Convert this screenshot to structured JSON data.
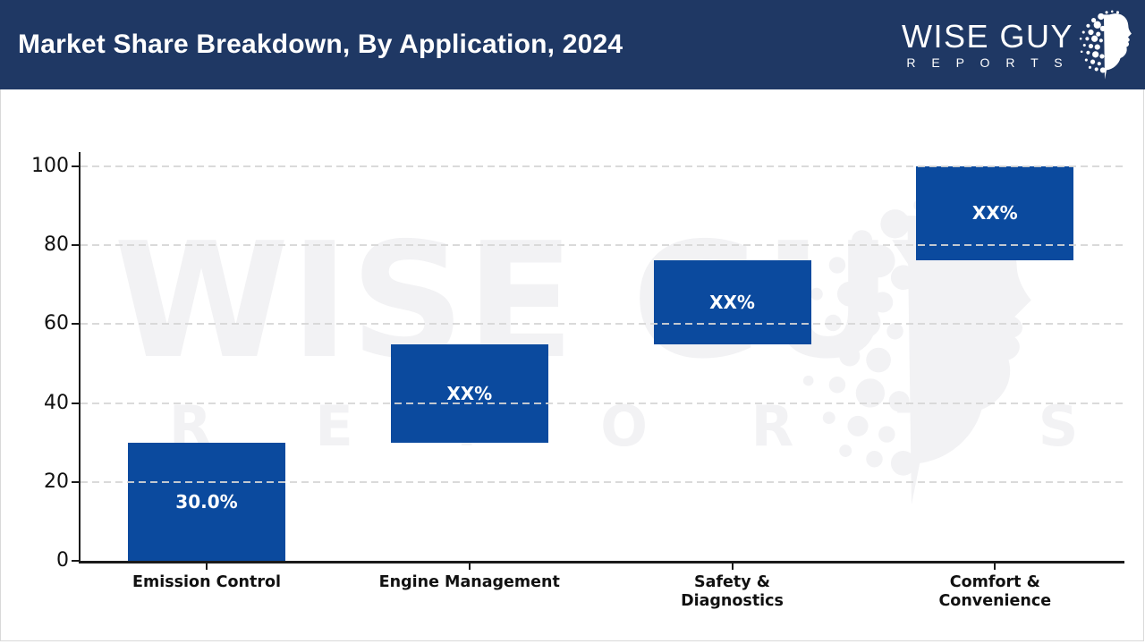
{
  "header": {
    "title": "Market Share Breakdown, By Application, 2024",
    "logo": {
      "name_line": "WISE GUY",
      "reports_line": "R E P O R T S"
    }
  },
  "watermark": {
    "name_line": "WISE GUY",
    "reports_line": "R E P O R T S"
  },
  "chart_data": {
    "type": "bar",
    "subtype": "waterfall-floating-bars",
    "title": "Market Share Breakdown, By Application, 2024",
    "unit": "percent",
    "categories_display": [
      "Emission Control",
      "Engine Management",
      "Safety &\nDiagnostics",
      "Comfort &\nConvenience"
    ],
    "bars": [
      {
        "category": "Emission Control",
        "label": "30.0%",
        "start": 0,
        "end": 30
      },
      {
        "category": "Engine Management",
        "label": "XX%",
        "start": 30,
        "end": 54.8
      },
      {
        "category": "Safety & Diagnostics",
        "label": "XX%",
        "start": 54.8,
        "end": 76.3
      },
      {
        "category": "Comfort & Convenience",
        "label": "XX%",
        "start": 76.3,
        "end": 100
      }
    ],
    "yticks": [
      "0",
      "20",
      "40",
      "60",
      "80",
      "100"
    ],
    "ylim": [
      0,
      100
    ],
    "grid": "horizontal-dashed",
    "legend": "none",
    "colors": {
      "bar": "#0b4a9e",
      "header_bg": "#1f3864",
      "grid": "#d6d6d6",
      "axis": "#1a1a1a",
      "bar_label": "#ffffff",
      "watermark": "#f2f2f4",
      "panel_border": "#d9d9d9"
    }
  }
}
